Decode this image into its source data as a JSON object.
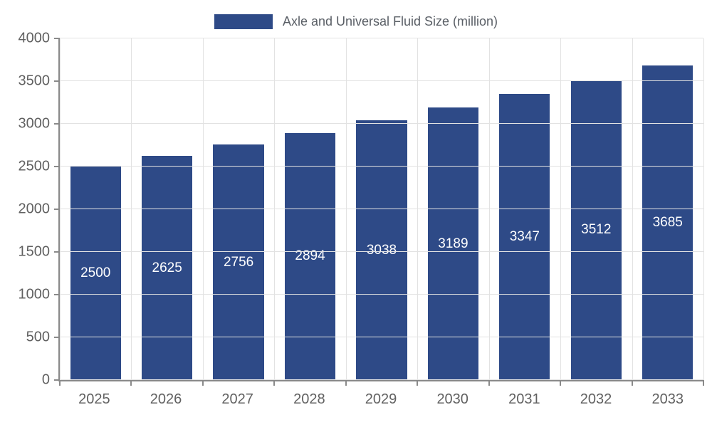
{
  "chart_data": {
    "type": "bar",
    "title": "Axle and Universal Fluid Size (million)",
    "categories": [
      "2025",
      "2026",
      "2027",
      "2028",
      "2029",
      "2030",
      "2031",
      "2032",
      "2033"
    ],
    "values": [
      2500,
      2625,
      2756,
      2894,
      3038,
      3189,
      3347,
      3512,
      3685
    ],
    "series": [
      {
        "name": "Axle and Universal Fluid Size (million)",
        "values": [
          2500,
          2625,
          2756,
          2894,
          3038,
          3189,
          3347,
          3512,
          3685
        ]
      }
    ],
    "legend": [
      "Axle and Universal Fluid Size (million)"
    ],
    "legend_position": "top-center",
    "xlabel": "",
    "ylabel": "",
    "ylim": [
      0,
      4000
    ],
    "yticks": [
      0,
      500,
      1000,
      1500,
      2000,
      2500,
      3000,
      3500,
      4000
    ],
    "grid": true,
    "bar_color": "#2e4a87",
    "value_label_color": "#ffffff",
    "axis_color": "#8a8a8a",
    "grid_color": "#e2e2e2",
    "tick_label_color": "#616161"
  }
}
